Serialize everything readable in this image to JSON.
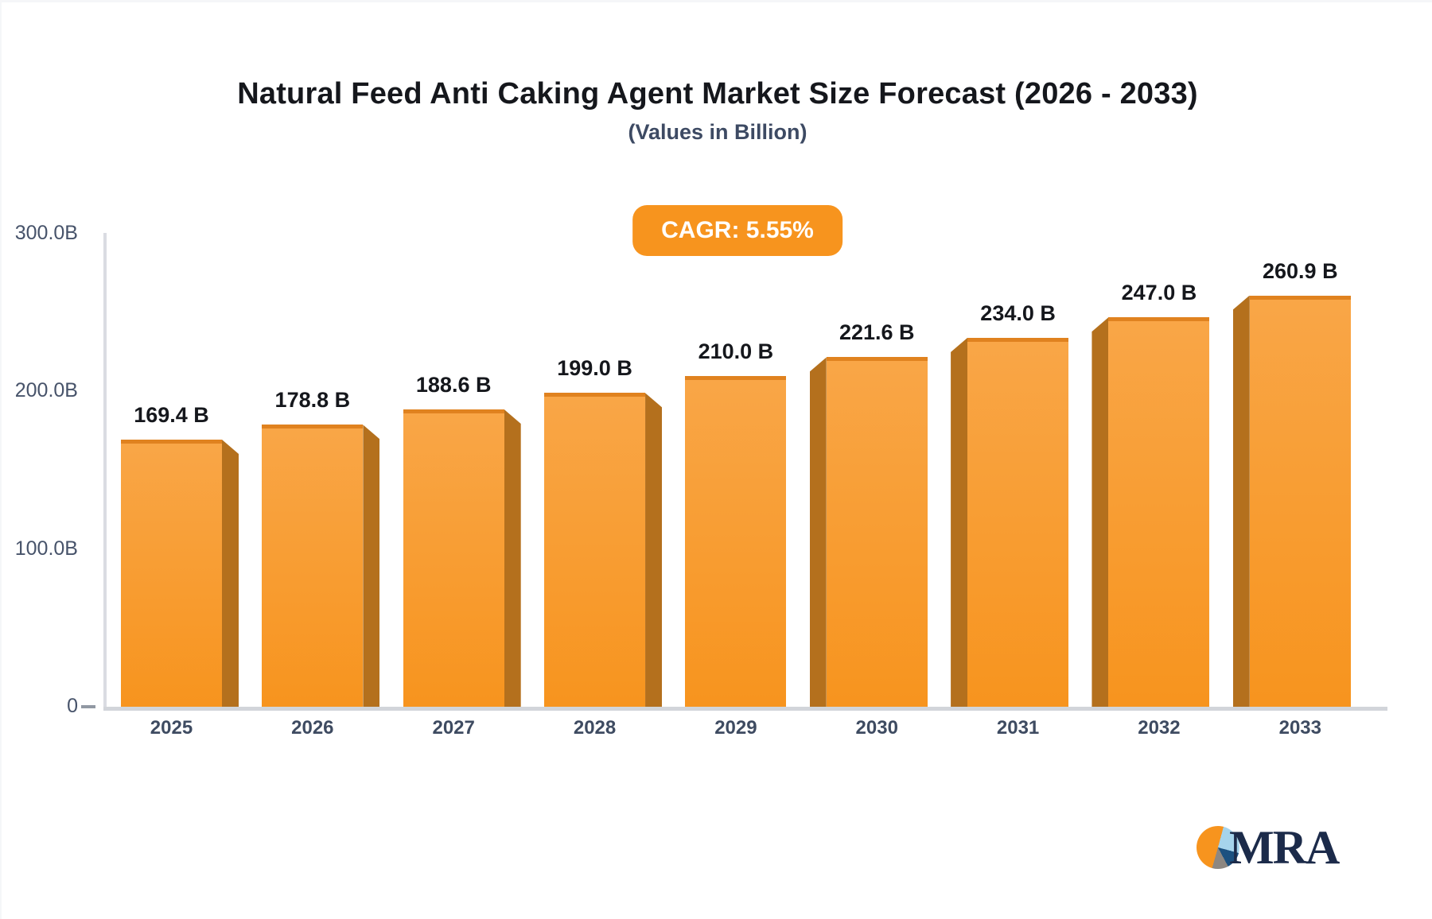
{
  "header": {
    "title": "Natural Feed Anti Caking Agent Market Size Forecast (2026 - 2033)",
    "subtitle": "(Values in Billion)"
  },
  "badge": {
    "label": "CAGR: 5.55%",
    "background": "#f7941e",
    "text_color": "#ffffff"
  },
  "chart_data": {
    "type": "bar",
    "title": "Natural Feed Anti Caking Agent Market Size Forecast (2026 - 2033)",
    "subtitle": "(Values in Billion)",
    "unit": "Billion",
    "cagr": "5.55%",
    "categories": [
      "2025",
      "2026",
      "2027",
      "2028",
      "2029",
      "2030",
      "2031",
      "2032",
      "2033"
    ],
    "values": [
      169.4,
      178.8,
      188.6,
      199.0,
      210.0,
      221.6,
      234.0,
      247.0,
      260.9
    ],
    "value_labels": [
      "169.4 B",
      "178.8 B",
      "188.6 B",
      "199.0 B",
      "210.0 B",
      "221.6 B",
      "234.0 B",
      "247.0 B",
      "260.9 B"
    ],
    "ylim": [
      0,
      300
    ],
    "y_ticks": [
      {
        "label": "300.0B",
        "value": 300
      },
      {
        "label": "200.0B",
        "value": 200
      },
      {
        "label": "100.0B",
        "value": 100
      },
      {
        "label": "0",
        "value": 0
      }
    ],
    "grid": false,
    "legend": "none",
    "style": "3d-perspective-center",
    "bar_color_top": "#f9a647",
    "bar_color_bottom": "#f7941e",
    "bar_top_edge_color": "#e0821f",
    "bar_side_color": "#b4701d"
  },
  "logo": {
    "text": "MRA",
    "pie_colors": [
      "#f7941e",
      "#a6d4ec",
      "#1c5180",
      "#8d8781"
    ],
    "text_color": "#1c2b4a"
  }
}
